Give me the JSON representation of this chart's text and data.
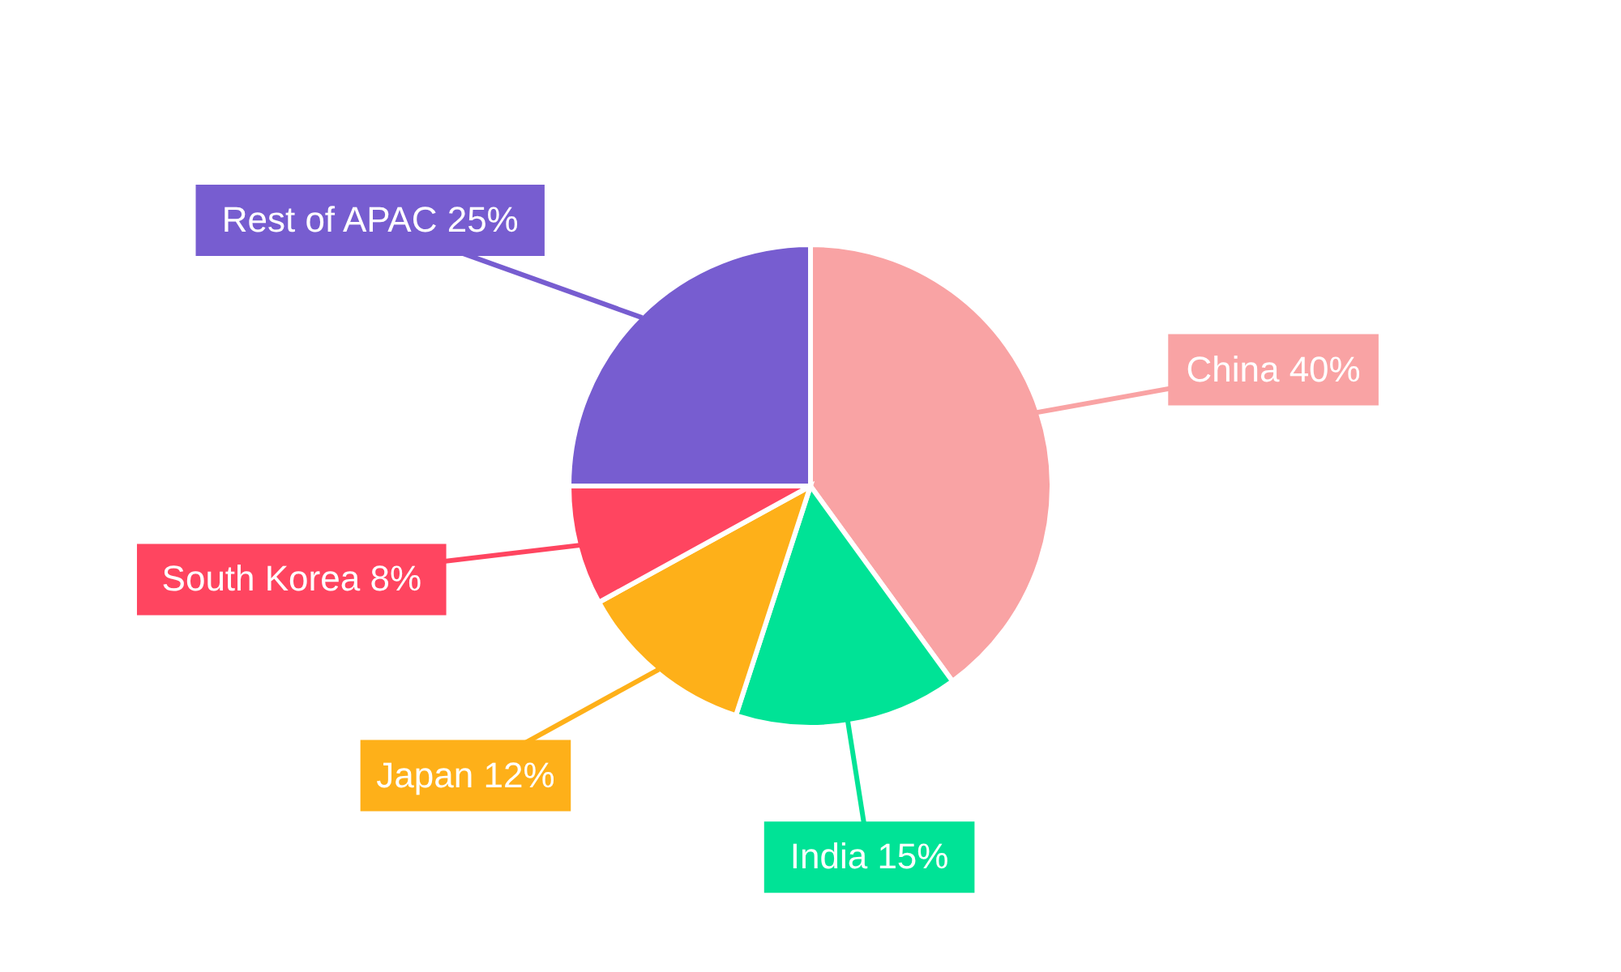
{
  "chart_data": {
    "type": "pie",
    "categories": [
      "China",
      "India",
      "Japan",
      "South Korea",
      "Rest of APAC"
    ],
    "values": [
      40,
      15,
      12,
      8,
      25
    ],
    "colors": [
      "#f9a3a4",
      "#00e396",
      "#feb019",
      "#ff4560",
      "#775dd0"
    ],
    "value_labels": [
      "40%",
      "15%",
      "12%",
      "8%",
      "25%"
    ]
  }
}
